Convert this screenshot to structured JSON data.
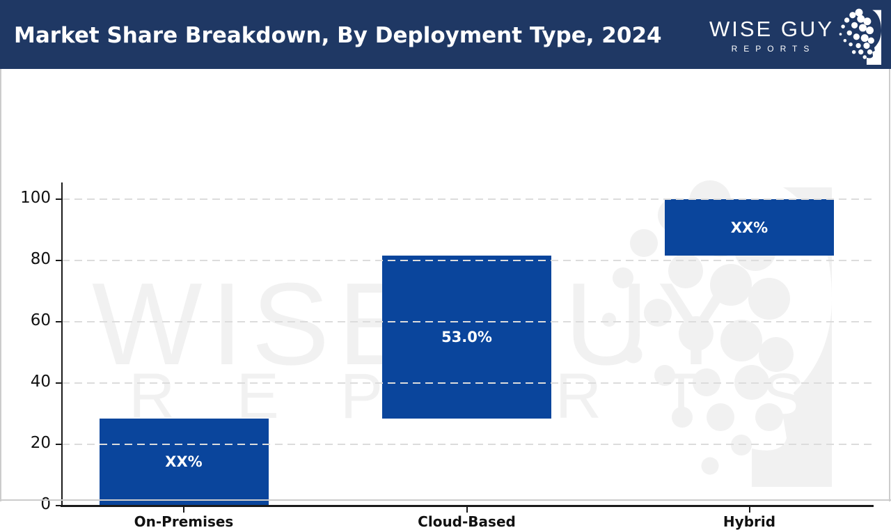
{
  "header": {
    "title": "Market Share Breakdown, By Deployment Type, 2024",
    "logo": {
      "name": "WISE GUY",
      "subtitle": "REPORTS"
    }
  },
  "watermark": {
    "name": "WISE GUY",
    "subtitle": "REPORTS"
  },
  "chart_data": {
    "type": "bar",
    "subtype": "floating-waterfall",
    "title": "Market Share Breakdown, By Deployment Type, 2024",
    "categories": [
      "On-Premises",
      "Cloud-Based",
      "Hybrid"
    ],
    "bars": [
      {
        "category": "On-Premises",
        "start": 0,
        "end": 28.5,
        "label": "XX%"
      },
      {
        "category": "Cloud-Based",
        "start": 28.5,
        "end": 81.5,
        "label": "53.0%"
      },
      {
        "category": "Hybrid",
        "start": 81.5,
        "end": 100,
        "label": "XX%"
      }
    ],
    "yticks": [
      0,
      20,
      40,
      60,
      80,
      100
    ],
    "ylim": [
      0,
      105.5
    ],
    "xlabel": "",
    "ylabel": "",
    "legend": "none",
    "grid": {
      "axis": "y",
      "style": "dashed",
      "on": true
    },
    "colors": {
      "bar": "#0a459c",
      "header_bg": "#1f3864",
      "grid": "#dcdcdc",
      "axis": "#1a1a1a",
      "bar_label": "#ffffff",
      "watermark": "#f1f1f1"
    }
  }
}
